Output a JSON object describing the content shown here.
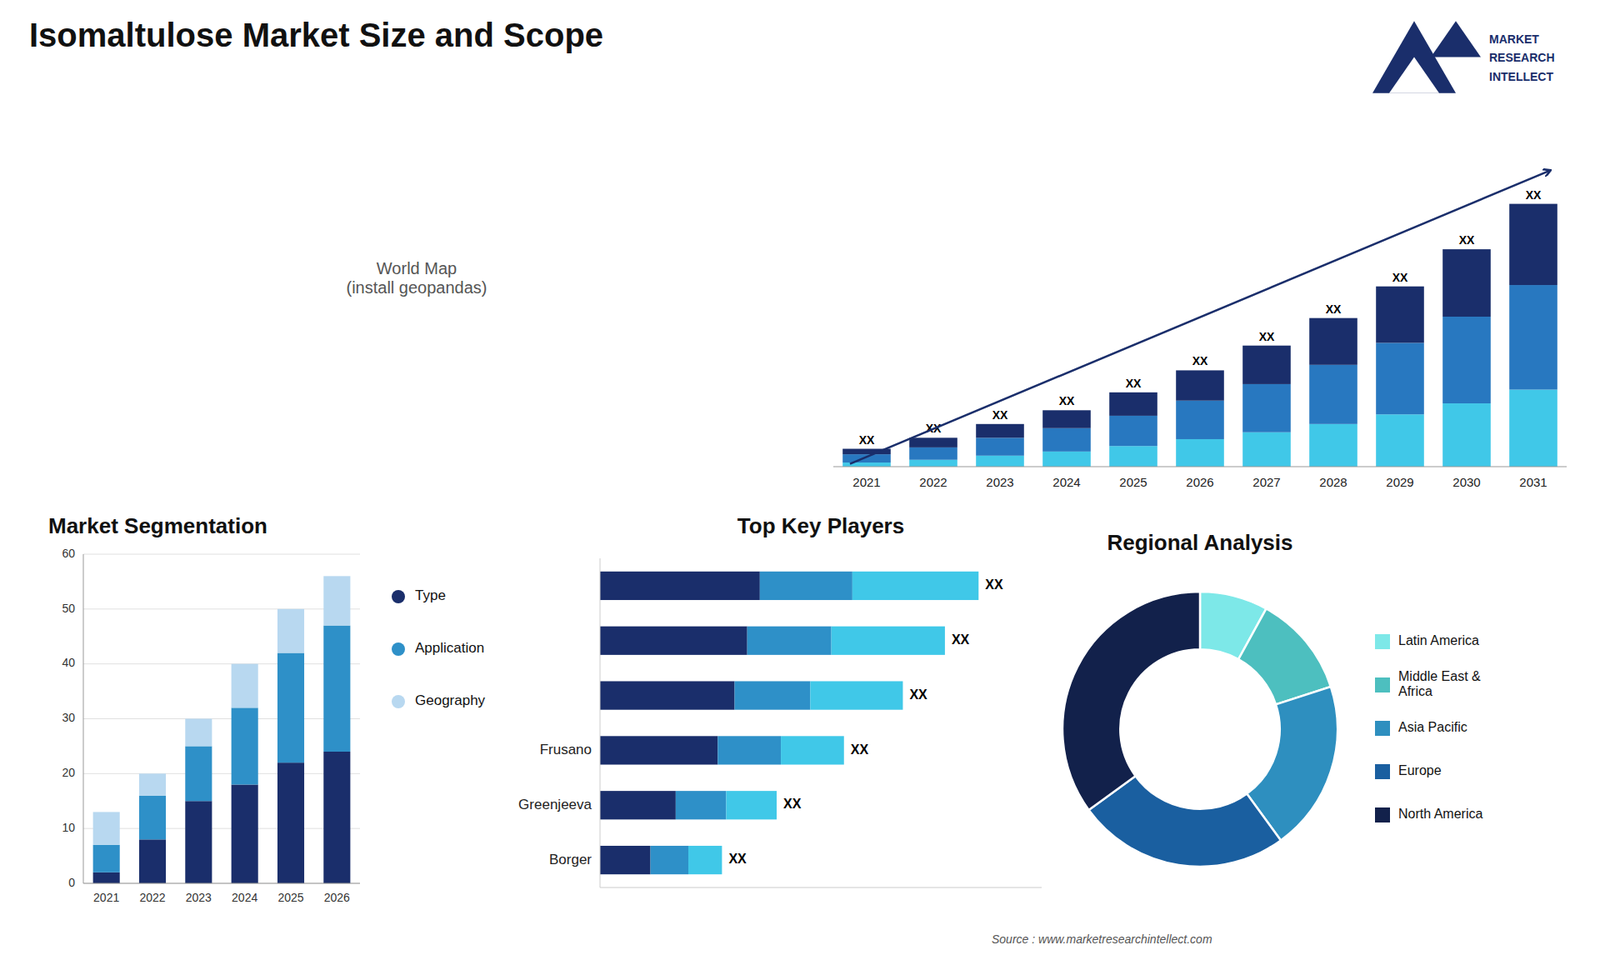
{
  "title": "Isomaltulose Market Size and Scope",
  "source": "Source : www.marketresearchintellect.com",
  "logo_text": [
    "MARKET",
    "RESEARCH",
    "INTELLECT"
  ],
  "map_text": "World Map\n(install geopandas)",
  "chart_data": [
    {
      "type": "bar",
      "stacked": true,
      "categories": [
        "2021",
        "2022",
        "2023",
        "2024",
        "2025",
        "2026",
        "2027",
        "2028",
        "2029",
        "2030",
        "2031"
      ],
      "series": [
        {
          "color": "#40c8e8",
          "values": [
            1.5,
            2.5,
            4.0,
            5.5,
            7.5,
            10.0,
            12.5,
            15.5,
            19.0,
            23.0,
            28.0
          ]
        },
        {
          "color": "#2878c0",
          "values": [
            3.0,
            4.5,
            6.5,
            8.5,
            11.0,
            14.0,
            17.5,
            21.5,
            26.0,
            31.5,
            38.0
          ]
        },
        {
          "color": "#1a2e6b",
          "values": [
            2.0,
            3.5,
            5.0,
            6.5,
            8.5,
            11.0,
            14.0,
            17.0,
            20.5,
            24.5,
            29.5
          ]
        }
      ],
      "ylim": [
        0,
        124.15
      ],
      "tick_labels": "x",
      "annotations": [
        "XX",
        "XX",
        "XX",
        "XX",
        "XX",
        "XX",
        "XX",
        "XX",
        "XX",
        "XX",
        "XX"
      ]
    },
    {
      "type": "bar",
      "stacked": true,
      "title": "Market Segmentation",
      "categories": [
        "2021",
        "2022",
        "2023",
        "2024",
        "2025",
        "2026"
      ],
      "series": [
        {
          "name": "Type",
          "color": "#1a2e6b",
          "values": [
            2,
            8,
            15,
            18,
            22,
            24
          ]
        },
        {
          "name": "Application",
          "color": "#2e90c8",
          "values": [
            5,
            8,
            10,
            14,
            20,
            23
          ]
        },
        {
          "name": "Geography",
          "color": "#b8d8f0",
          "values": [
            6,
            4,
            5,
            8,
            8,
            9
          ]
        }
      ],
      "ylim": [
        0,
        60
      ],
      "yticks": [
        0,
        10,
        20,
        30,
        40,
        50,
        60
      ],
      "grid": true,
      "legend": "right"
    },
    {
      "type": "bar",
      "stacked": true,
      "orientation": "horizontal",
      "title": "Top Key Players",
      "categories": [
        null,
        null,
        null,
        "Frusano",
        "Greenjeeva",
        "Borger"
      ],
      "series": [
        {
          "color": "#1a2e6b",
          "values": [
            38,
            35,
            32,
            28,
            18,
            12
          ]
        },
        {
          "color": "#2e90c8",
          "values": [
            22,
            20,
            18,
            15,
            12,
            9
          ]
        },
        {
          "color": "#40c8e8",
          "values": [
            30,
            27,
            22,
            15,
            12,
            8
          ]
        }
      ],
      "xlim": [
        0,
        105
      ],
      "tick_labels": "y",
      "annotations": [
        "XX",
        "XX",
        "XX",
        "XX",
        "XX",
        "XX"
      ]
    },
    {
      "type": "pie",
      "title": "Regional Analysis",
      "categories": [
        "Latin America",
        "Middle East &\nAfrica",
        "Asia Pacific",
        "Europe",
        "North America"
      ],
      "values": [
        8,
        12,
        20,
        25,
        35
      ],
      "colors": [
        "#7de8e8",
        "#4dbfbf",
        "#2e8fbf",
        "#1a5fa0",
        "#12214b"
      ],
      "legend": "right"
    }
  ]
}
